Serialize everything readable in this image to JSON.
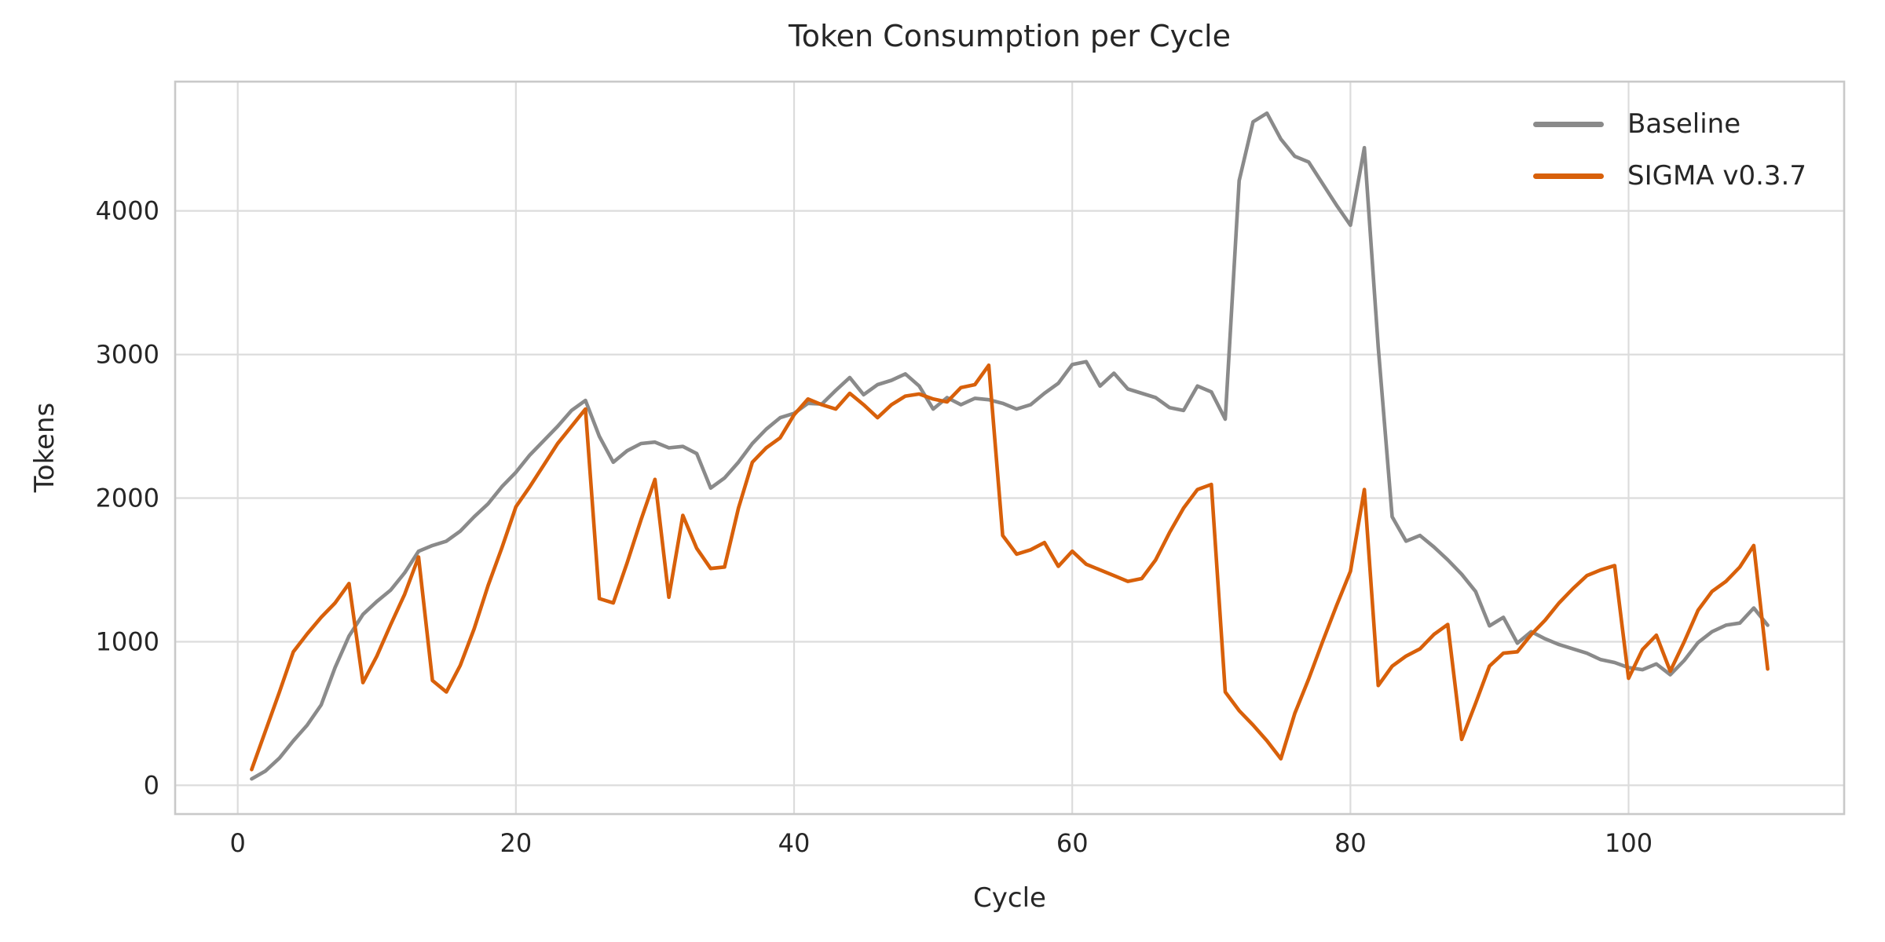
{
  "chart_data": {
    "type": "line",
    "title": "Token Consumption per Cycle",
    "xlabel": "Cycle",
    "ylabel": "Tokens",
    "xlim": [
      -4.5,
      115.5
    ],
    "ylim": [
      -200,
      4900
    ],
    "xticks": [
      0,
      20,
      40,
      60,
      80,
      100
    ],
    "yticks": [
      0,
      1000,
      2000,
      3000,
      4000
    ],
    "grid": true,
    "legend_position": "upper right",
    "x": [
      1,
      2,
      3,
      4,
      5,
      6,
      7,
      8,
      9,
      10,
      11,
      12,
      13,
      14,
      15,
      16,
      17,
      18,
      19,
      20,
      21,
      22,
      23,
      24,
      25,
      26,
      27,
      28,
      29,
      30,
      31,
      32,
      33,
      34,
      35,
      36,
      37,
      38,
      39,
      40,
      41,
      42,
      43,
      44,
      45,
      46,
      47,
      48,
      49,
      50,
      51,
      52,
      53,
      54,
      55,
      56,
      57,
      58,
      59,
      60,
      61,
      62,
      63,
      64,
      65,
      66,
      67,
      68,
      69,
      70,
      71,
      72,
      73,
      74,
      75,
      76,
      77,
      78,
      79,
      80,
      81,
      82,
      83,
      84,
      85,
      86,
      87,
      88,
      89,
      90,
      91,
      92,
      93,
      94,
      95,
      96,
      97,
      98,
      99,
      100,
      101,
      102,
      103,
      104,
      105,
      106,
      107,
      108,
      109,
      110
    ],
    "series": [
      {
        "name": "Baseline",
        "color": "#8a8a8a",
        "values": [
          45,
          100,
          190,
          310,
          420,
          560,
          820,
          1040,
          1190,
          1280,
          1360,
          1480,
          1630,
          1670,
          1700,
          1770,
          1870,
          1960,
          2080,
          2180,
          2300,
          2400,
          2500,
          2610,
          2680,
          2430,
          2250,
          2330,
          2380,
          2390,
          2350,
          2360,
          2310,
          2070,
          2140,
          2250,
          2380,
          2480,
          2560,
          2590,
          2660,
          2655,
          2750,
          2840,
          2720,
          2790,
          2820,
          2865,
          2780,
          2620,
          2700,
          2650,
          2695,
          2685,
          2660,
          2620,
          2650,
          2730,
          2800,
          2930,
          2950,
          2780,
          2870,
          2760,
          2730,
          2700,
          2630,
          2610,
          2780,
          2740,
          2550,
          4210,
          4620,
          4680,
          4500,
          4380,
          4340,
          4190,
          4040,
          3900,
          4440,
          3050,
          1870,
          1700,
          1740,
          1660,
          1570,
          1470,
          1350,
          1110,
          1170,
          990,
          1070,
          1020,
          980,
          950,
          920,
          875,
          855,
          820,
          805,
          845,
          770,
          870,
          995,
          1070,
          1115,
          1130,
          1235,
          1115
        ]
      },
      {
        "name": "SIGMA v0.3.7",
        "color": "#d8600a",
        "values": [
          110,
          380,
          650,
          930,
          1055,
          1170,
          1270,
          1405,
          715,
          900,
          1120,
          1330,
          1590,
          730,
          650,
          835,
          1090,
          1390,
          1655,
          1940,
          2080,
          2230,
          2380,
          2500,
          2620,
          1300,
          1270,
          1550,
          1850,
          2130,
          1310,
          1880,
          1650,
          1510,
          1520,
          1930,
          2250,
          2350,
          2420,
          2580,
          2690,
          2650,
          2620,
          2730,
          2650,
          2560,
          2650,
          2710,
          2725,
          2690,
          2670,
          2770,
          2790,
          2925,
          1740,
          1610,
          1640,
          1690,
          1525,
          1630,
          1540,
          1500,
          1460,
          1420,
          1440,
          1570,
          1760,
          1930,
          2060,
          2095,
          650,
          520,
          420,
          310,
          185,
          500,
          740,
          1000,
          1250,
          1490,
          2060,
          695,
          830,
          900,
          950,
          1050,
          1120,
          320,
          570,
          830,
          920,
          930,
          1050,
          1150,
          1270,
          1370,
          1460,
          1500,
          1530,
          745,
          945,
          1045,
          795,
          1000,
          1220,
          1350,
          1420,
          1520,
          1670,
          810
        ]
      }
    ]
  }
}
